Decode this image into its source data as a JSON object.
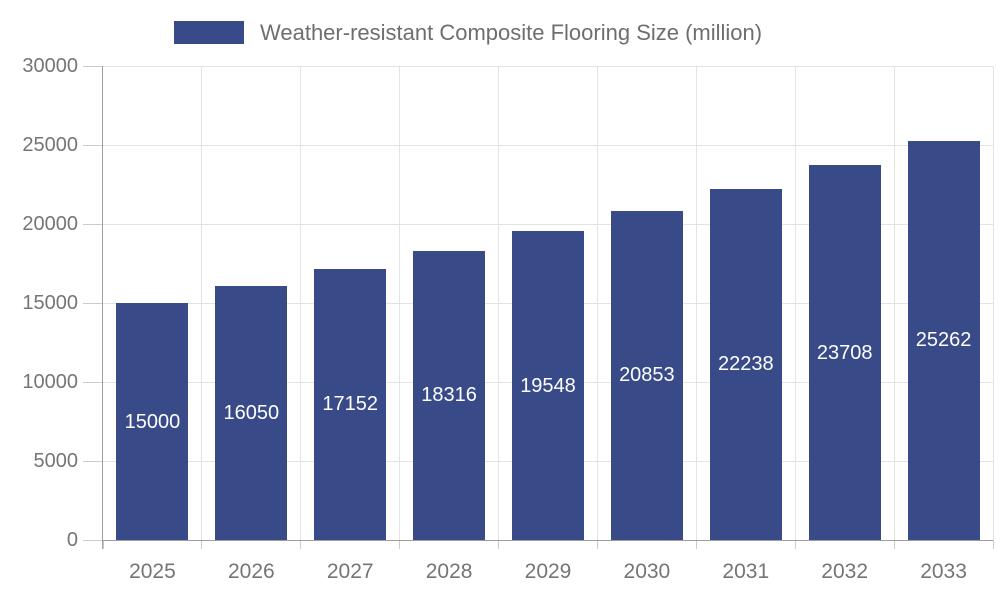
{
  "chart_data": {
    "type": "bar",
    "title": "Weather-resistant Composite Flooring Size (million)",
    "categories": [
      "2025",
      "2026",
      "2027",
      "2028",
      "2029",
      "2030",
      "2031",
      "2032",
      "2033"
    ],
    "values": [
      15000,
      16050,
      17152,
      18316,
      19548,
      20853,
      22238,
      23708,
      25262
    ],
    "xlabel": "",
    "ylabel": "",
    "ylim": [
      0,
      30000
    ],
    "yticks": [
      0,
      5000,
      10000,
      15000,
      20000,
      25000,
      30000
    ],
    "grid": true,
    "legend_position": "top",
    "bar_value_labels": "inside-center"
  },
  "colors": {
    "bar": "#394A89",
    "bar_label": "#FFFFFF",
    "gridline": "#E3E3E3",
    "axis_line": "#9E9E9E",
    "tick": "#CCCCCC",
    "axis_text": "#757575",
    "legend_text": "#6E6E6E",
    "background": "#FFFFFF"
  }
}
